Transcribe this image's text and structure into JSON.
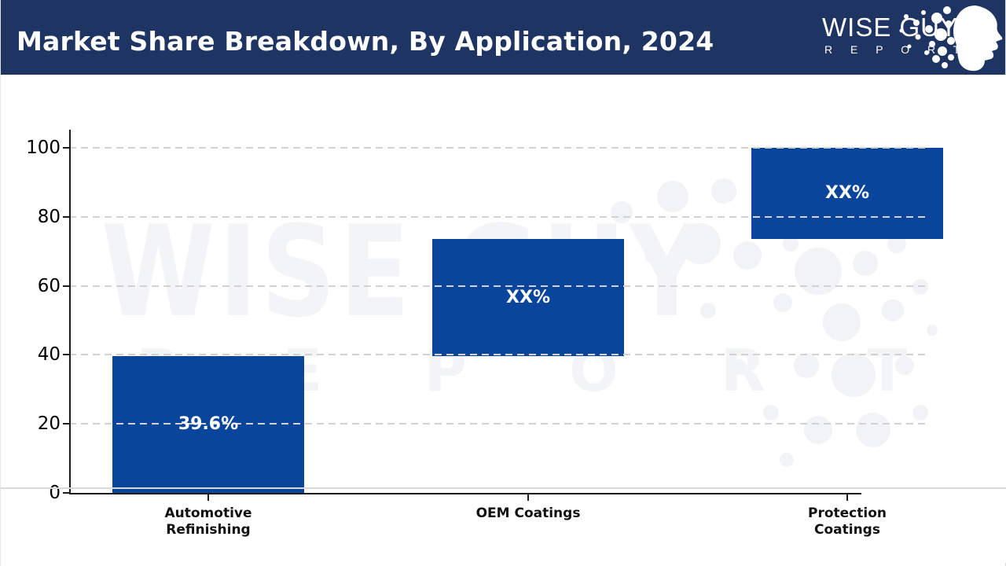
{
  "header": {
    "title": "Market Share Breakdown, By Application, 2024",
    "bg_color": "#1e3462",
    "logo": {
      "wordmark": "WISE GUY",
      "subtext": "R E P O R T S"
    }
  },
  "watermark": {
    "wordmark": "WISE GUY",
    "subtext": "R E P O R T S"
  },
  "chart_data": {
    "type": "bar",
    "subtype": "floating-segment-waterfall",
    "title": "Market Share Breakdown, By Application, 2024",
    "categories": [
      {
        "lines": [
          "Automotive",
          "Refinishing"
        ]
      },
      {
        "lines": [
          "OEM Coatings"
        ]
      },
      {
        "lines": [
          "Protection",
          "Coatings"
        ]
      }
    ],
    "segments": [
      {
        "category": "Automotive Refinishing",
        "start": 0,
        "end": 39.6,
        "label": "39.6%"
      },
      {
        "category": "OEM Coatings",
        "start": 39.6,
        "end": 73.6,
        "label": "XX%"
      },
      {
        "category": "Protection Coatings",
        "start": 73.6,
        "end": 100,
        "label": "XX%"
      }
    ],
    "xlabel": "",
    "ylabel": "",
    "ylim": [
      0,
      100
    ],
    "yticks": [
      0,
      20,
      40,
      60,
      80,
      100
    ],
    "grid": "horizontal-dashed",
    "legend": "none",
    "colors": {
      "bar": "#0a459c",
      "bar_label": "#ffffff",
      "grid": "#d2d2d2",
      "axis": "#1c1c1c",
      "header_bg": "#1e3462",
      "watermark": "#f3f4f6"
    }
  }
}
